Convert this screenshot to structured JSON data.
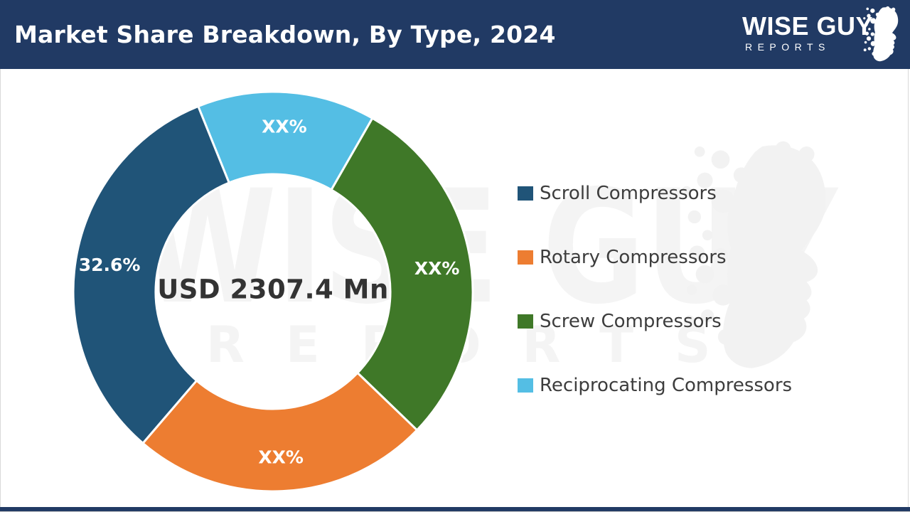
{
  "header": {
    "title": "Market Share Breakdown, By Type, 2024",
    "logo": {
      "line1": "WISE GUY",
      "line2": "REPORTS"
    }
  },
  "watermark": {
    "line1": "WISE GUY",
    "line2": "REPORTS"
  },
  "colors": {
    "header_bg": "#213a64",
    "center_text": "#333333",
    "legend_text": "#3d3d3d",
    "watermark": "#f4f4f4",
    "watermark_face": "#f2f2f2"
  },
  "chart_data": {
    "type": "pie",
    "donut": true,
    "title": "Market Share Breakdown, By Type, 2024",
    "center_label": "USD 2307.4 Mn",
    "legend_position": "right",
    "start_angle_deg": -22,
    "direction": "clockwise",
    "outer_radius": 281,
    "inner_radius": 165,
    "label_radius": 233,
    "segments": [
      {
        "label": "Reciprocating Compressors",
        "value": 14.4,
        "display": "XX%",
        "color": "#54bee4"
      },
      {
        "label": "Screw Compressors",
        "value": 28.9,
        "display": "XX%",
        "color": "#3f7828"
      },
      {
        "label": "Rotary Compressors",
        "value": 24.1,
        "display": "XX%",
        "color": "#ed7d31"
      },
      {
        "label": "Scroll Compressors",
        "value": 32.6,
        "display": "32.6%",
        "color": "#205478"
      }
    ],
    "legend_order": [
      3,
      2,
      1,
      0
    ]
  }
}
